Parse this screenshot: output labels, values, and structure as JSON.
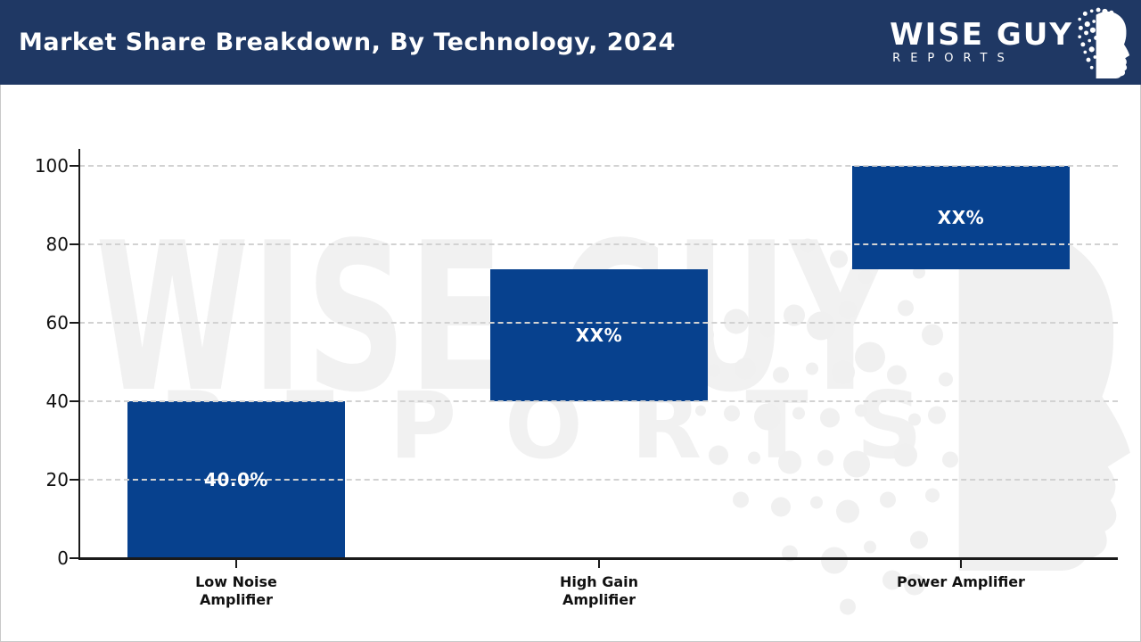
{
  "header": {
    "title": "Market Share Breakdown, By Technology, 2024",
    "bg_color": "#1f3864",
    "logo": {
      "line1": "WISE GUY",
      "line2": "REPORTS"
    }
  },
  "watermark": {
    "line1": "WISE GUY",
    "line2": "REPORTS"
  },
  "chart_data": {
    "type": "bar",
    "subtype": "floating-waterfall",
    "title": "Market Share Breakdown, By Technology, 2024",
    "categories": [
      {
        "lines": [
          "Low Noise",
          "Amplifier"
        ]
      },
      {
        "lines": [
          "High Gain",
          "Amplifier"
        ]
      },
      {
        "lines": [
          "Power Amplifier"
        ]
      }
    ],
    "segments": [
      {
        "category": "Low Noise Amplifier",
        "start": 0,
        "end": 40,
        "label": "40.0%"
      },
      {
        "category": "High Gain Amplifier",
        "start": 40,
        "end": 73.6,
        "label": "XX%"
      },
      {
        "category": "Power Amplifier",
        "start": 73.6,
        "end": 100,
        "label": "XX%"
      }
    ],
    "ylim": [
      0,
      100
    ],
    "yticks": [
      0,
      20,
      40,
      60,
      80,
      100
    ],
    "xlabel": "",
    "ylabel": "",
    "grid": "dashed-horizontal-above-bars",
    "legend": "none",
    "bar_color": "#07418e",
    "bar_label_color": "#ffffff",
    "axis_color": "#1a1a1a",
    "grid_color": "#d2d2d2",
    "watermark_color": "#f1f1f1"
  }
}
